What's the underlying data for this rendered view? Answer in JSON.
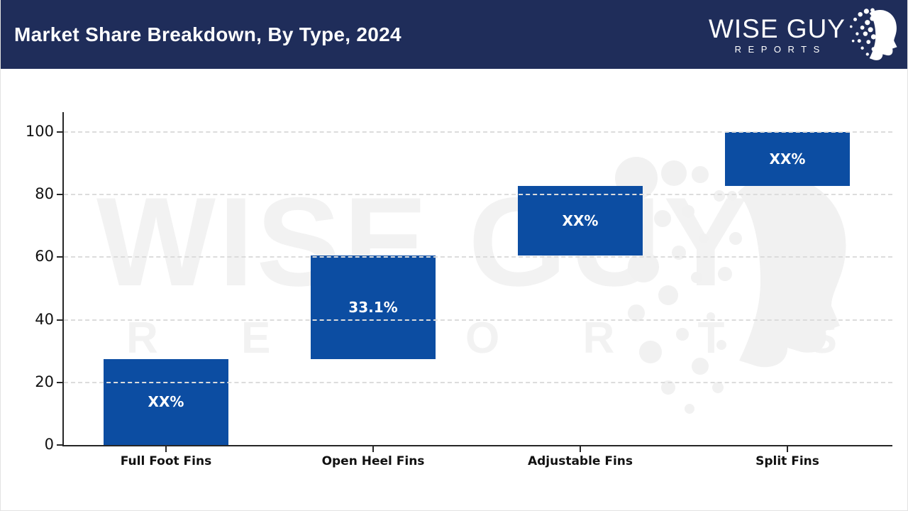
{
  "header": {
    "title": "Market Share Breakdown, By Type, 2024",
    "logo": {
      "line1": "WISE GUY",
      "line2": "REPORTS"
    }
  },
  "watermark": {
    "line1": "WISE GUY",
    "line2": "REPORTS"
  },
  "colors": {
    "header_bg": "#1f2d5a",
    "bar": "#0c4da2",
    "grid": "#dcdcdc",
    "axis": "#262626",
    "watermark": "#f2f2f2",
    "bar_label": "#ffffff"
  },
  "chart_data": {
    "type": "bar",
    "subtype": "waterfall-floating-segments",
    "title": "Market Share Breakdown, By Type, 2024",
    "categories": [
      "Full Foot Fins",
      "Open Heel Fins",
      "Adjustable Fins",
      "Split Fins"
    ],
    "segments": [
      {
        "category": "Full Foot Fins",
        "start": 0,
        "end": 27.5,
        "value_label": "XX%"
      },
      {
        "category": "Open Heel Fins",
        "start": 27.5,
        "end": 60.6,
        "value": 33.1,
        "value_label": "33.1%"
      },
      {
        "category": "Adjustable Fins",
        "start": 60.6,
        "end": 82.7,
        "value_label": "XX%"
      },
      {
        "category": "Split Fins",
        "start": 82.7,
        "end": 100,
        "value_label": "XX%"
      }
    ],
    "yticks": [
      0,
      20,
      40,
      60,
      80,
      100
    ],
    "ylim": [
      0,
      105
    ],
    "xlabel": "",
    "ylabel": "",
    "grid": "horizontal dashed, drawn above bars",
    "legend": "none",
    "bar_color": "#0c4da2"
  }
}
